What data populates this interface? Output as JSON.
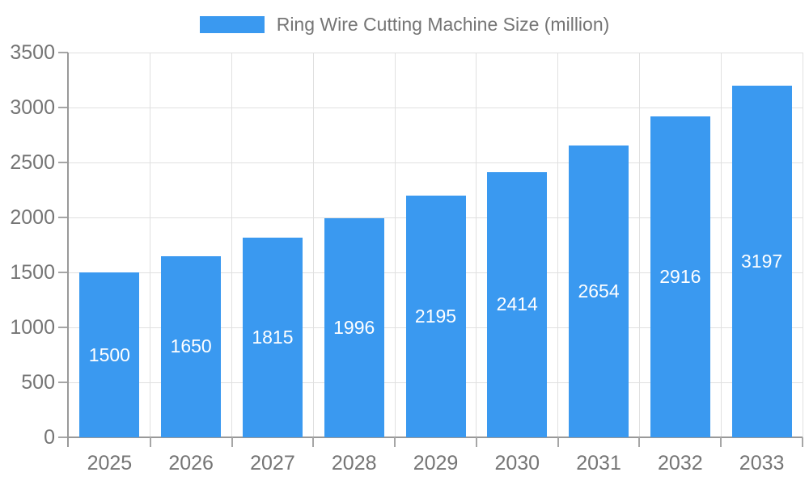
{
  "legend": {
    "label": "Ring Wire Cutting Machine Size (million)"
  },
  "chart_data": {
    "type": "bar",
    "title": "Ring Wire Cutting Machine Size (million)",
    "categories": [
      "2025",
      "2026",
      "2027",
      "2028",
      "2029",
      "2030",
      "2031",
      "2032",
      "2033"
    ],
    "values": [
      1500,
      1650,
      1815,
      1996,
      2195,
      2414,
      2654,
      2916,
      3197
    ],
    "xlabel": "",
    "ylabel": "",
    "ylim": [
      0,
      3500
    ],
    "yticks": [
      0,
      500,
      1000,
      1500,
      2000,
      2500,
      3000,
      3500
    ],
    "grid": true,
    "legend_position": "top-center",
    "value_labels": "inside-middle",
    "colors": {
      "bar": "#3A99F0",
      "grid": "#E0E0E0",
      "axis": "#999999",
      "tick": "#A6A6A6",
      "label": "#757575",
      "value_label": "#FFFFFF",
      "background": "#FFFFFF"
    }
  }
}
